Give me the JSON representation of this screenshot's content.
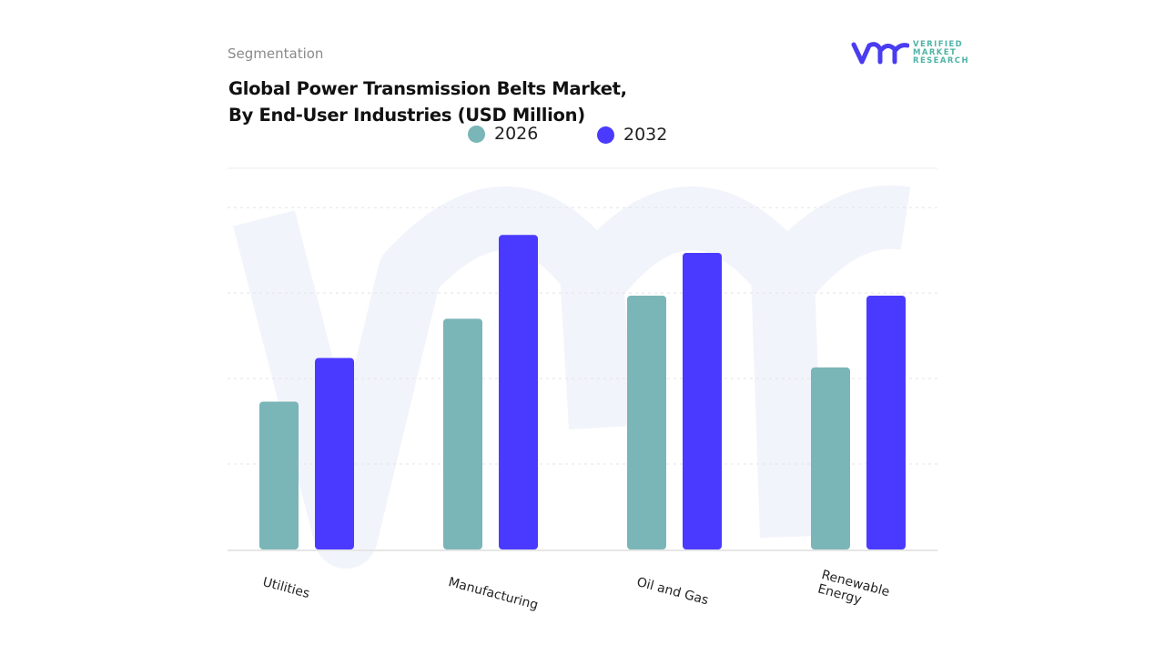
{
  "header": {
    "segment_label": "Segmentation",
    "title_line1": "Global Power Transmission Belts Market,",
    "title_line2": "By End-User Industries (USD Million)"
  },
  "logo": {
    "brand": "VERIFIED MARKET RESEARCH",
    "line1": "VERIFIED",
    "line2": "MARKET",
    "line3": "RESEARCH",
    "colors": {
      "mark": "#4a3cf0",
      "text": "#4fb3a6"
    }
  },
  "chart_data": {
    "type": "bar",
    "title": "Global Power Transmission Belts Market, By End-User Industries (USD Million)",
    "categories": [
      "Utilities",
      "Manufacturing",
      "Oil and Gas",
      "Renewable\nEnergy"
    ],
    "series": [
      {
        "name": "2026",
        "color": "#7ab5b8",
        "values": [
          1.73,
          2.7,
          2.97,
          2.13
        ]
      },
      {
        "name": "2032",
        "color": "#4a3aff",
        "values": [
          2.24,
          3.68,
          3.47,
          2.97
        ]
      }
    ],
    "ylim": [
      0,
      4.46
    ],
    "grid": true,
    "y_axis_labels_shown": false,
    "legend_placement": "top-center"
  }
}
